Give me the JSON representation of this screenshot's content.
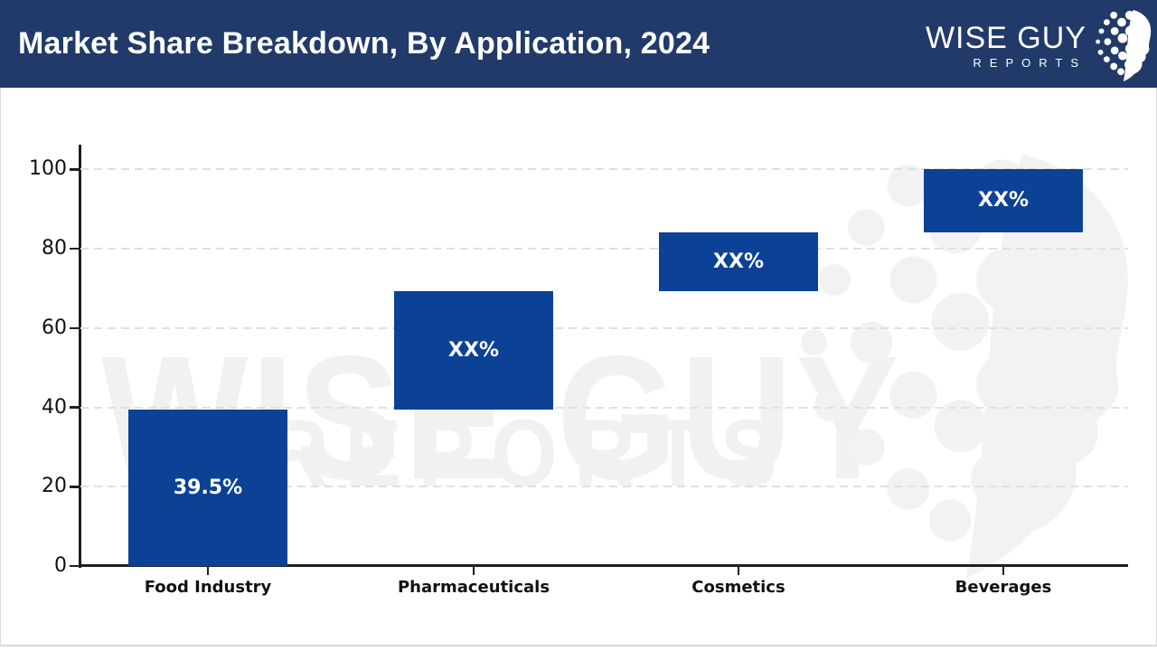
{
  "header": {
    "title": "Market Share Breakdown, By Application, 2024",
    "logo": {
      "name": "WISE GUY",
      "subtitle": "REPORTS"
    }
  },
  "watermark": {
    "name": "WISE GUY",
    "subtitle": "REPORTS"
  },
  "chart_data": {
    "type": "bar",
    "variant": "waterfall",
    "title": "Market Share Breakdown, By Application, 2024",
    "categories": [
      "Food Industry",
      "Pharmaceuticals",
      "Cosmetics",
      "Beverages"
    ],
    "segments": [
      {
        "category": "Food Industry",
        "value_label": "39.5%",
        "start": 0,
        "end": 39.5
      },
      {
        "category": "Pharmaceuticals",
        "value_label": "XX%",
        "start": 39.5,
        "end": 69.3
      },
      {
        "category": "Cosmetics",
        "value_label": "XX%",
        "start": 69.3,
        "end": 84.2
      },
      {
        "category": "Beverages",
        "value_label": "XX%",
        "start": 84.2,
        "end": 100.2
      }
    ],
    "y_ticks": [
      0,
      20,
      40,
      60,
      80,
      100
    ],
    "ylim": [
      0,
      107
    ],
    "xlabel": "",
    "ylabel": "",
    "grid": "horizontal-dashed",
    "legend": "none",
    "bar_color": "#0c4296",
    "value_label_color": "#ffffff"
  },
  "colors": {
    "header_bg": "#213a69",
    "bar": "#0c4296",
    "axis": "#1f1f1f",
    "grid": "#e0e0e0",
    "watermark": "#f1f1f2"
  }
}
